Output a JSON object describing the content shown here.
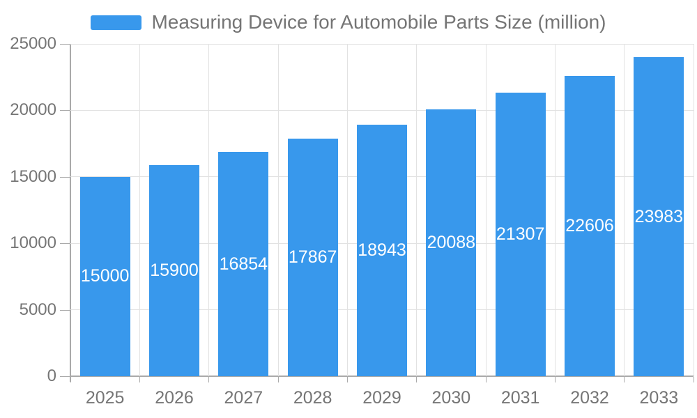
{
  "chart_data": {
    "type": "bar",
    "title": "Measuring Device for Automobile Parts Size (million)",
    "categories": [
      "2025",
      "2026",
      "2027",
      "2028",
      "2029",
      "2030",
      "2031",
      "2032",
      "2033"
    ],
    "values": [
      15000,
      15900,
      16854,
      17867,
      18943,
      20088,
      21307,
      22606,
      23983
    ],
    "series": [
      {
        "name": "Measuring Device for Automobile Parts Size (million)",
        "values": [
          15000,
          15900,
          16854,
          17867,
          18943,
          20088,
          21307,
          22606,
          23983
        ]
      }
    ],
    "xlabel": "",
    "ylabel": "",
    "ylim": [
      0,
      25000
    ],
    "y_ticks": [
      0,
      5000,
      10000,
      15000,
      20000,
      25000
    ],
    "y_tick_labels": [
      "0",
      "5000",
      "10000",
      "15000",
      "20000",
      "25000"
    ],
    "grid": true,
    "legend_position": "top",
    "bar_labels_visible": true,
    "colors": {
      "bar": "#3898ec",
      "bar_label": "#ffffff",
      "axis_text": "#757575",
      "axis_line": "#aaaaaa",
      "grid_line": "#e2e2e2",
      "background": "#ffffff"
    }
  },
  "legend": {
    "items": [
      {
        "label": "Measuring Device for Automobile Parts Size (million)",
        "color": "#3898ec"
      }
    ]
  }
}
